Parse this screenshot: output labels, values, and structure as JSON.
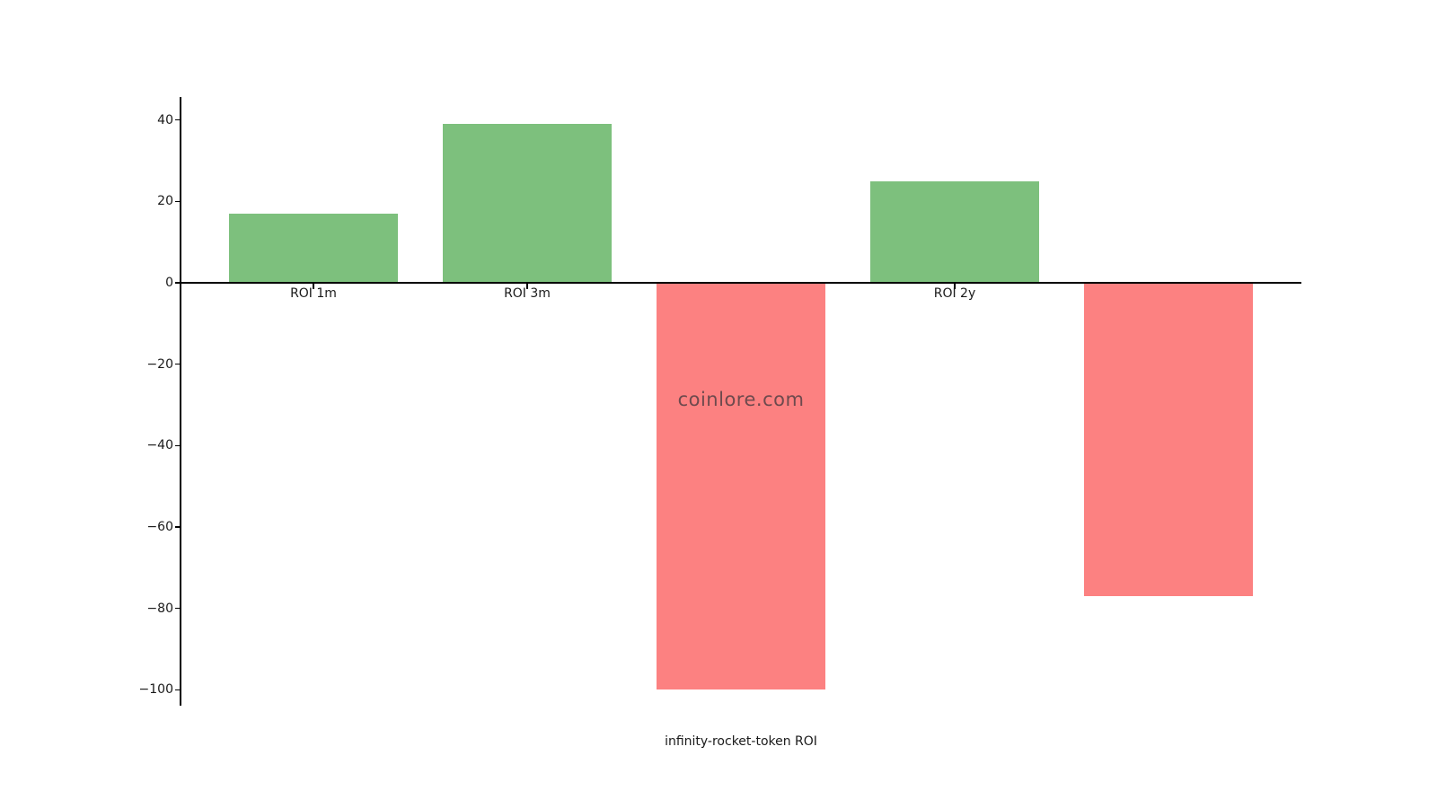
{
  "figure": {
    "watermark": "coinlore.com",
    "xlabel": "infinity-rocket-token ROI"
  },
  "chart_data": {
    "type": "bar",
    "title": "infinity-rocket-token ROI",
    "categories": [
      "ROI 1m",
      "ROI 3m",
      "",
      "ROI 2y",
      ""
    ],
    "values": [
      17,
      39,
      -100,
      25,
      -77
    ],
    "bar_colors": [
      "#7dc07d",
      "#7dc07d",
      "#fc8181",
      "#7dc07d",
      "#fc8181"
    ],
    "positive_color": "#7dc07d",
    "negative_color": "#fc8181",
    "yticks": [
      40,
      20,
      0,
      -20,
      -40,
      -60,
      -80,
      -100
    ],
    "ylim": [
      -104,
      46
    ],
    "xlabel": "",
    "ylabel": "",
    "grid": false,
    "legend": null,
    "axis_color": "#000000",
    "annotations": [
      {
        "text": "coinlore.com",
        "position": "axes-center"
      }
    ]
  }
}
